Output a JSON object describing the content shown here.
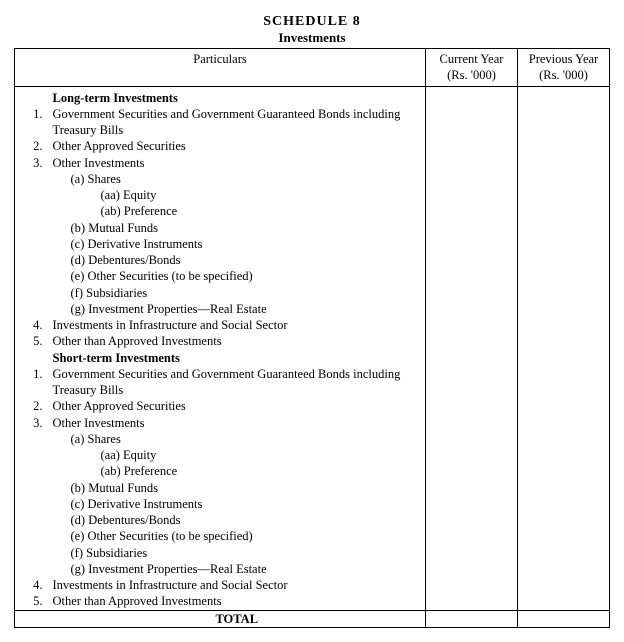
{
  "title_line1": "SCHEDULE 8",
  "title_line2": "Investments",
  "headers": {
    "particulars": "Particulars",
    "current": "Current Year (Rs. '000)",
    "previous": "Previous Year (Rs. '000)"
  },
  "section_long": "Long-term Investments",
  "section_short": "Short-term Investments",
  "items": {
    "n1": "1.",
    "n2": "2.",
    "n3": "3.",
    "n4": "4.",
    "n5": "5.",
    "r1": "Government Securities and Government Guaranteed Bonds including Treasury Bills",
    "r2": "Other Approved Securities",
    "r3": "Other Investments",
    "r3a": "(a)  Shares",
    "r3aa": "(aa)  Equity",
    "r3ab": "(ab)  Preference",
    "r3b": "(b)  Mutual Funds",
    "r3c": "(c)  Derivative Instruments",
    "r3d": "(d)  Debentures/Bonds",
    "r3e": "(e)  Other Securities (to be specified)",
    "r3f": "(f)  Subsidiaries",
    "r3g": "(g)  Investment Properties—Real Estate",
    "r4": "Investments in Infrastructure and Social Sector",
    "r5": "Other than Approved Investments"
  },
  "total_label": "TOTAL"
}
